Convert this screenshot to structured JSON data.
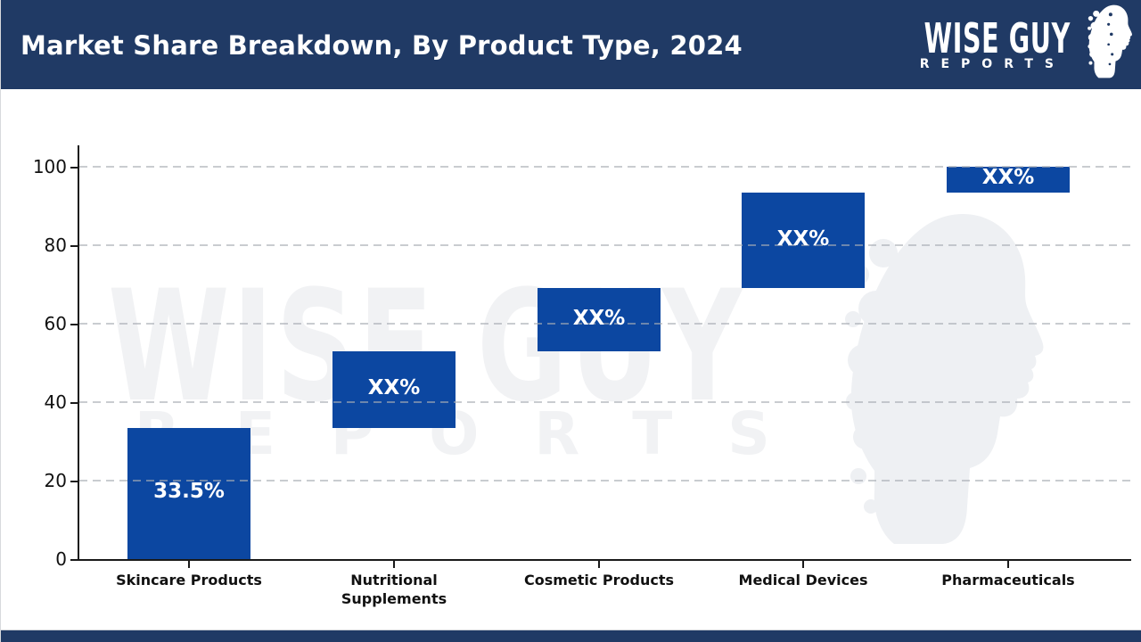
{
  "header": {
    "title": "Market Share Breakdown, By Product Type, 2024",
    "brand": {
      "line1": "WISE GUY",
      "line2": "REPORTS"
    },
    "bg_color": "#203a65",
    "text_color": "#ffffff"
  },
  "watermark": {
    "line1": "WISE GUY",
    "line2": "REPORTS"
  },
  "chart_data": {
    "type": "bar",
    "variant": "floating-waterfall",
    "title": "Market Share Breakdown, By Product Type, 2024",
    "categories": [
      "Skincare Products",
      "Nutritional Supplements",
      "Cosmetic Products",
      "Medical Devices",
      "Pharmaceuticals"
    ],
    "x_tick_display": [
      "Skincare Products",
      "Nutritional\nSupplements",
      "Cosmetic Products",
      "Medical Devices",
      "Pharmaceuticals"
    ],
    "series": [
      {
        "name": "Market share (%)",
        "segments": [
          {
            "category": "Skincare Products",
            "start": 0,
            "end": 33.5,
            "label": "33.5%"
          },
          {
            "category": "Nutritional Supplements",
            "start": 33.5,
            "end": 53,
            "label": "XX%"
          },
          {
            "category": "Cosmetic Products",
            "start": 53,
            "end": 69,
            "label": "XX%"
          },
          {
            "category": "Medical Devices",
            "start": 69,
            "end": 93.5,
            "label": "XX%"
          },
          {
            "category": "Pharmaceuticals",
            "start": 93.5,
            "end": 100,
            "label": "XX%"
          }
        ]
      }
    ],
    "ylim": [
      0,
      100
    ],
    "yticks": [
      0,
      20,
      40,
      60,
      80,
      100
    ],
    "grid": {
      "axis": "y",
      "style": "dashed",
      "color": "#d9d9d9",
      "drawn_over_bars": true
    },
    "legend": "none",
    "bar_color": "#0c47a1",
    "bar_label_color": "#ffffff",
    "axis_color": "#1a1a1a"
  }
}
